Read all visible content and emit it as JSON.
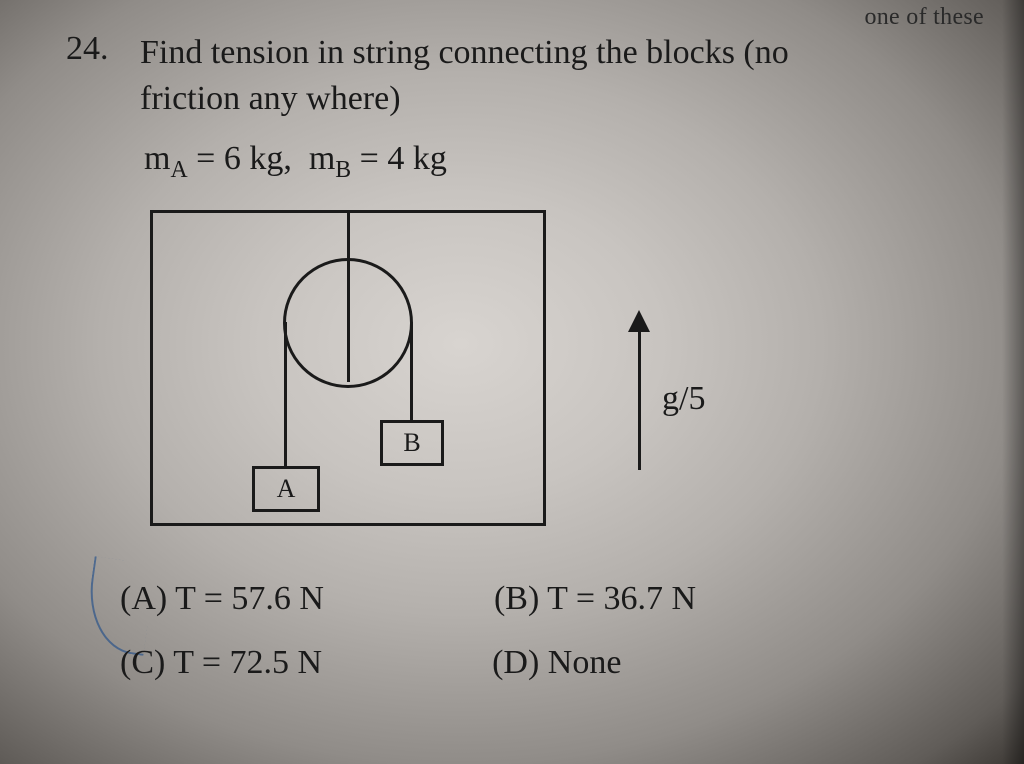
{
  "header_partial": "one of these",
  "question": {
    "number": "24.",
    "line1": "Find tension in string connecting the blocks (no",
    "line2": "friction any where)"
  },
  "masses_html": "m<span class=\"sub\">A</span> = 6 kg,&nbsp; m<span class=\"sub\">B</span> = 4 kg",
  "diagram": {
    "block_a_label": "A",
    "block_b_label": "B",
    "accel_label": "g/5",
    "colors": {
      "stroke": "#1a1a1a"
    }
  },
  "options": {
    "A": "(A) T = 57.6 N",
    "B": "(B)  T = 36.7 N",
    "C": "(C)  T = 72.5 N",
    "D": "(D)  None"
  }
}
